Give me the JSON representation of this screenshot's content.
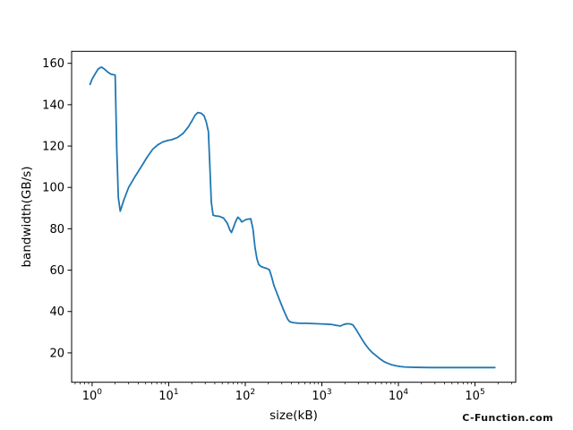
{
  "page": {
    "background": "#ffffff"
  },
  "watermark": {
    "text": "C-Function.com"
  },
  "chart_data": {
    "type": "line",
    "title": "",
    "xlabel": "size(kB)",
    "ylabel": "bandwidth(GB/s)",
    "x_scale": "log",
    "y_scale": "linear",
    "xlim": [
      0.54,
      340000
    ],
    "ylim": [
      5.8,
      165.8
    ],
    "grid": false,
    "legend": "none",
    "axis_color": "#000000",
    "line_color": "#1f77b4",
    "y_ticks": [
      20,
      40,
      60,
      80,
      100,
      120,
      140,
      160
    ],
    "x_ticks": [
      {
        "value": 1,
        "mantissa": "10",
        "exponent": "0"
      },
      {
        "value": 10,
        "mantissa": "10",
        "exponent": "1"
      },
      {
        "value": 100,
        "mantissa": "10",
        "exponent": "2"
      },
      {
        "value": 1000,
        "mantissa": "10",
        "exponent": "3"
      },
      {
        "value": 10000,
        "mantissa": "10",
        "exponent": "4"
      },
      {
        "value": 100000,
        "mantissa": "10",
        "exponent": "5"
      }
    ],
    "series": [
      {
        "name": "bandwidth",
        "points": [
          [
            0.94,
            149.8
          ],
          [
            1.0,
            152.4
          ],
          [
            1.1,
            155.0
          ],
          [
            1.2,
            157.3
          ],
          [
            1.32,
            158.2
          ],
          [
            1.45,
            157.2
          ],
          [
            1.6,
            155.8
          ],
          [
            1.75,
            154.8
          ],
          [
            1.9,
            154.5
          ],
          [
            2.0,
            154.3
          ],
          [
            2.1,
            118
          ],
          [
            2.2,
            95
          ],
          [
            2.33,
            88.5
          ],
          [
            2.6,
            94
          ],
          [
            3.0,
            100
          ],
          [
            3.6,
            105
          ],
          [
            4.3,
            109.5
          ],
          [
            5.2,
            114.5
          ],
          [
            6.2,
            118.5
          ],
          [
            7.2,
            120.6
          ],
          [
            8.3,
            121.9
          ],
          [
            9.5,
            122.6
          ],
          [
            11,
            123.1
          ],
          [
            13,
            124.1
          ],
          [
            15.5,
            126.2
          ],
          [
            18,
            129.2
          ],
          [
            20,
            132
          ],
          [
            22,
            134.8
          ],
          [
            24,
            136.2
          ],
          [
            26.5,
            135.9
          ],
          [
            29,
            134.6
          ],
          [
            31,
            131.5
          ],
          [
            33,
            127
          ],
          [
            34.5,
            110
          ],
          [
            36,
            93
          ],
          [
            38,
            86.6
          ],
          [
            41,
            86.2
          ],
          [
            46,
            86.0
          ],
          [
            52,
            85.2
          ],
          [
            58,
            82.8
          ],
          [
            63,
            79.4
          ],
          [
            66,
            78.2
          ],
          [
            70,
            80.6
          ],
          [
            75,
            83.6
          ],
          [
            80,
            85.6
          ],
          [
            85,
            84.7
          ],
          [
            90,
            83.3
          ],
          [
            96,
            83.9
          ],
          [
            103,
            84.5
          ],
          [
            110,
            84.7
          ],
          [
            118,
            84.8
          ],
          [
            126,
            80
          ],
          [
            134,
            71
          ],
          [
            142,
            65.5
          ],
          [
            150,
            62.7
          ],
          [
            162,
            61.7
          ],
          [
            176,
            61.2
          ],
          [
            192,
            60.8
          ],
          [
            207,
            60.1
          ],
          [
            222,
            56.5
          ],
          [
            238,
            52.3
          ],
          [
            256,
            49.4
          ],
          [
            276,
            46.2
          ],
          [
            296,
            43.4
          ],
          [
            316,
            40.8
          ],
          [
            338,
            38.3
          ],
          [
            358,
            36.3
          ],
          [
            380,
            35.1
          ],
          [
            405,
            34.8
          ],
          [
            430,
            34.6
          ],
          [
            480,
            34.4
          ],
          [
            550,
            34.3
          ],
          [
            630,
            34.3
          ],
          [
            730,
            34.2
          ],
          [
            850,
            34.1
          ],
          [
            990,
            34.0
          ],
          [
            1150,
            33.9
          ],
          [
            1350,
            33.7
          ],
          [
            1550,
            33.3
          ],
          [
            1750,
            33.0
          ],
          [
            1950,
            33.8
          ],
          [
            2150,
            34.1
          ],
          [
            2350,
            34.0
          ],
          [
            2550,
            33.5
          ],
          [
            2800,
            31.3
          ],
          [
            3100,
            28.6
          ],
          [
            3400,
            26.1
          ],
          [
            3750,
            23.8
          ],
          [
            4150,
            21.7
          ],
          [
            4600,
            20.0
          ],
          [
            5100,
            18.7
          ],
          [
            5700,
            17.2
          ],
          [
            6400,
            15.9
          ],
          [
            7200,
            15.0
          ],
          [
            8100,
            14.3
          ],
          [
            9200,
            13.8
          ],
          [
            10500,
            13.4
          ],
          [
            12000,
            13.2
          ],
          [
            14000,
            13.1
          ],
          [
            17000,
            13.0
          ],
          [
            21000,
            12.95
          ],
          [
            27000,
            12.9
          ],
          [
            35000,
            12.9
          ],
          [
            50000,
            12.9
          ],
          [
            70000,
            12.9
          ],
          [
            100000,
            12.9
          ],
          [
            140000,
            12.9
          ],
          [
            182000,
            12.9
          ]
        ]
      }
    ]
  }
}
